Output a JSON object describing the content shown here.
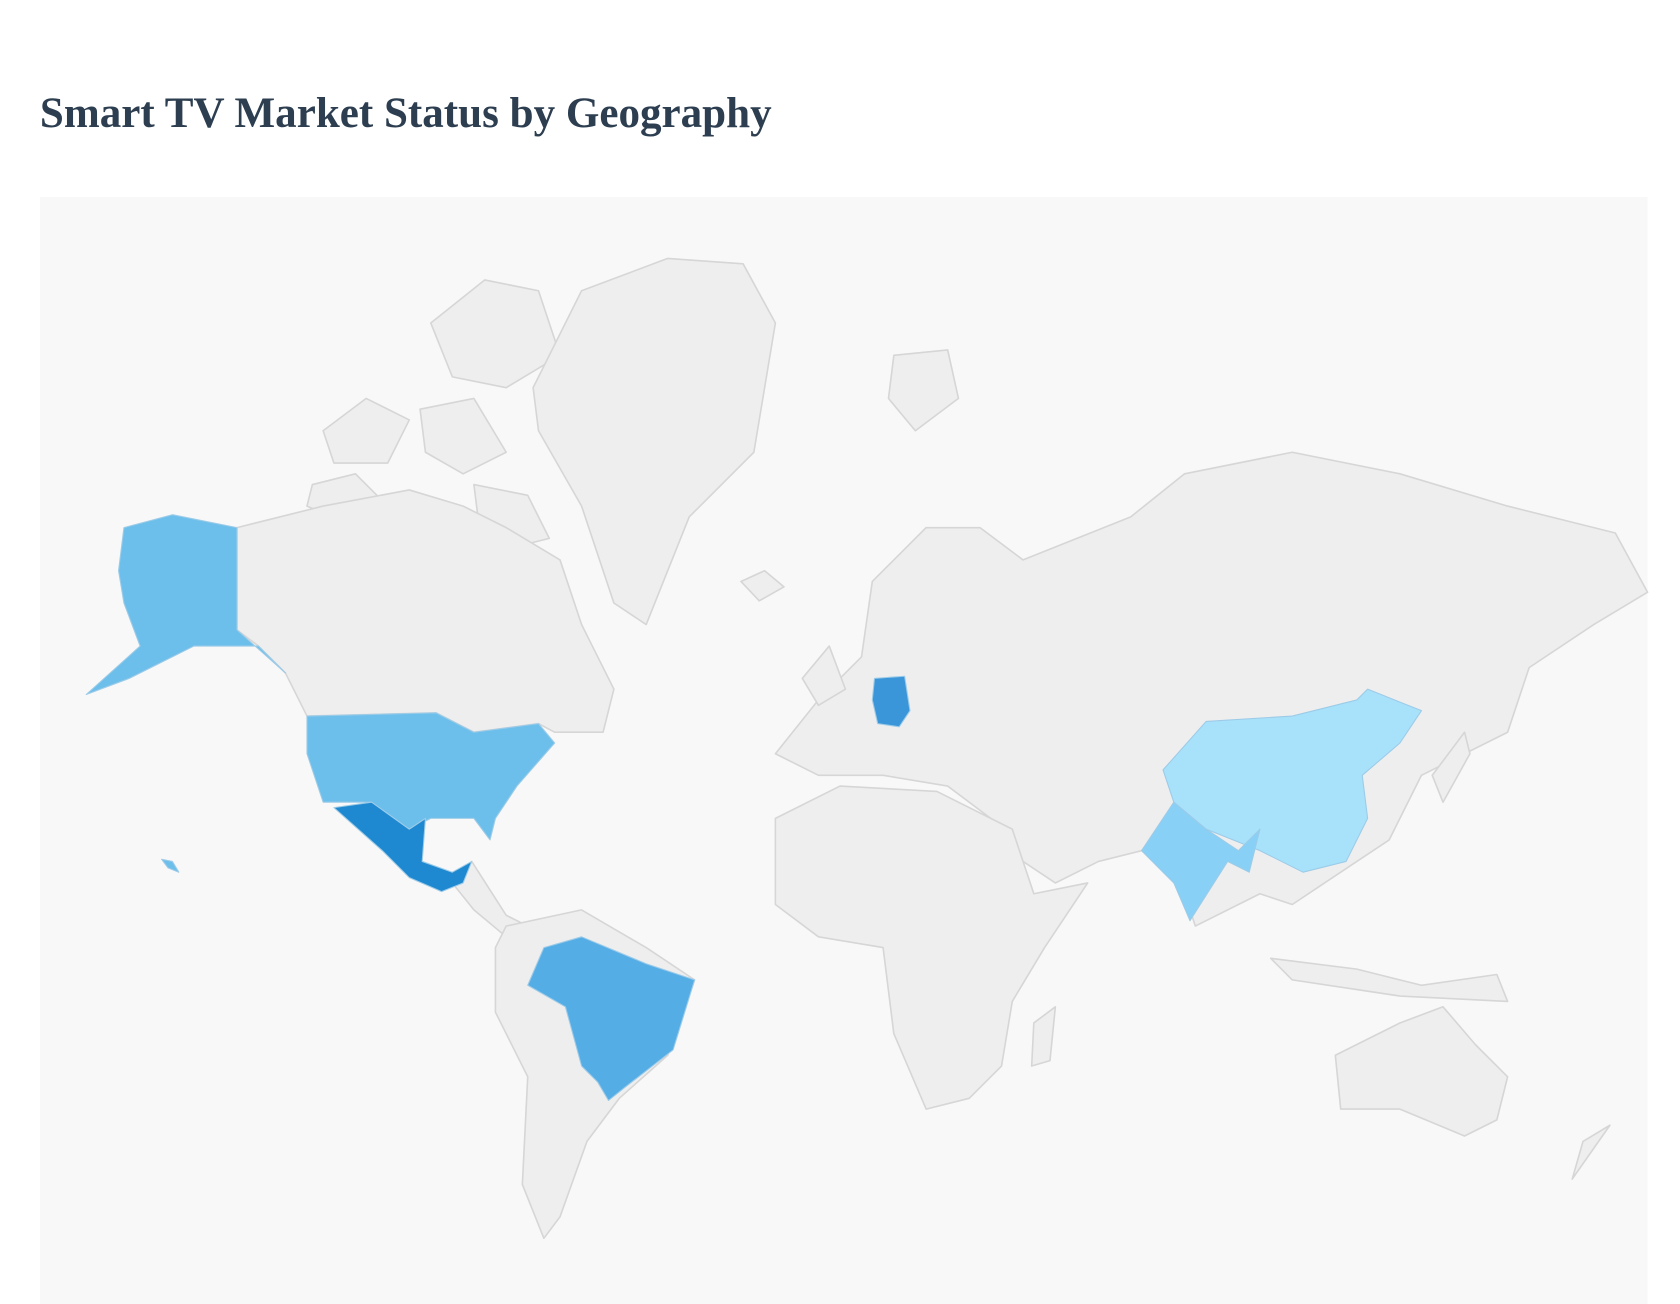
{
  "header": {
    "title": "Smart TV Market Status by Geography"
  },
  "map": {
    "background": "#f8f8f8",
    "land_color": "#eeeeee",
    "highlight_colors": [
      "#6cbfeb",
      "#1e88d0",
      "#55ade6",
      "#3a96d9",
      "#88d0f5",
      "#a8e1fa"
    ]
  }
}
